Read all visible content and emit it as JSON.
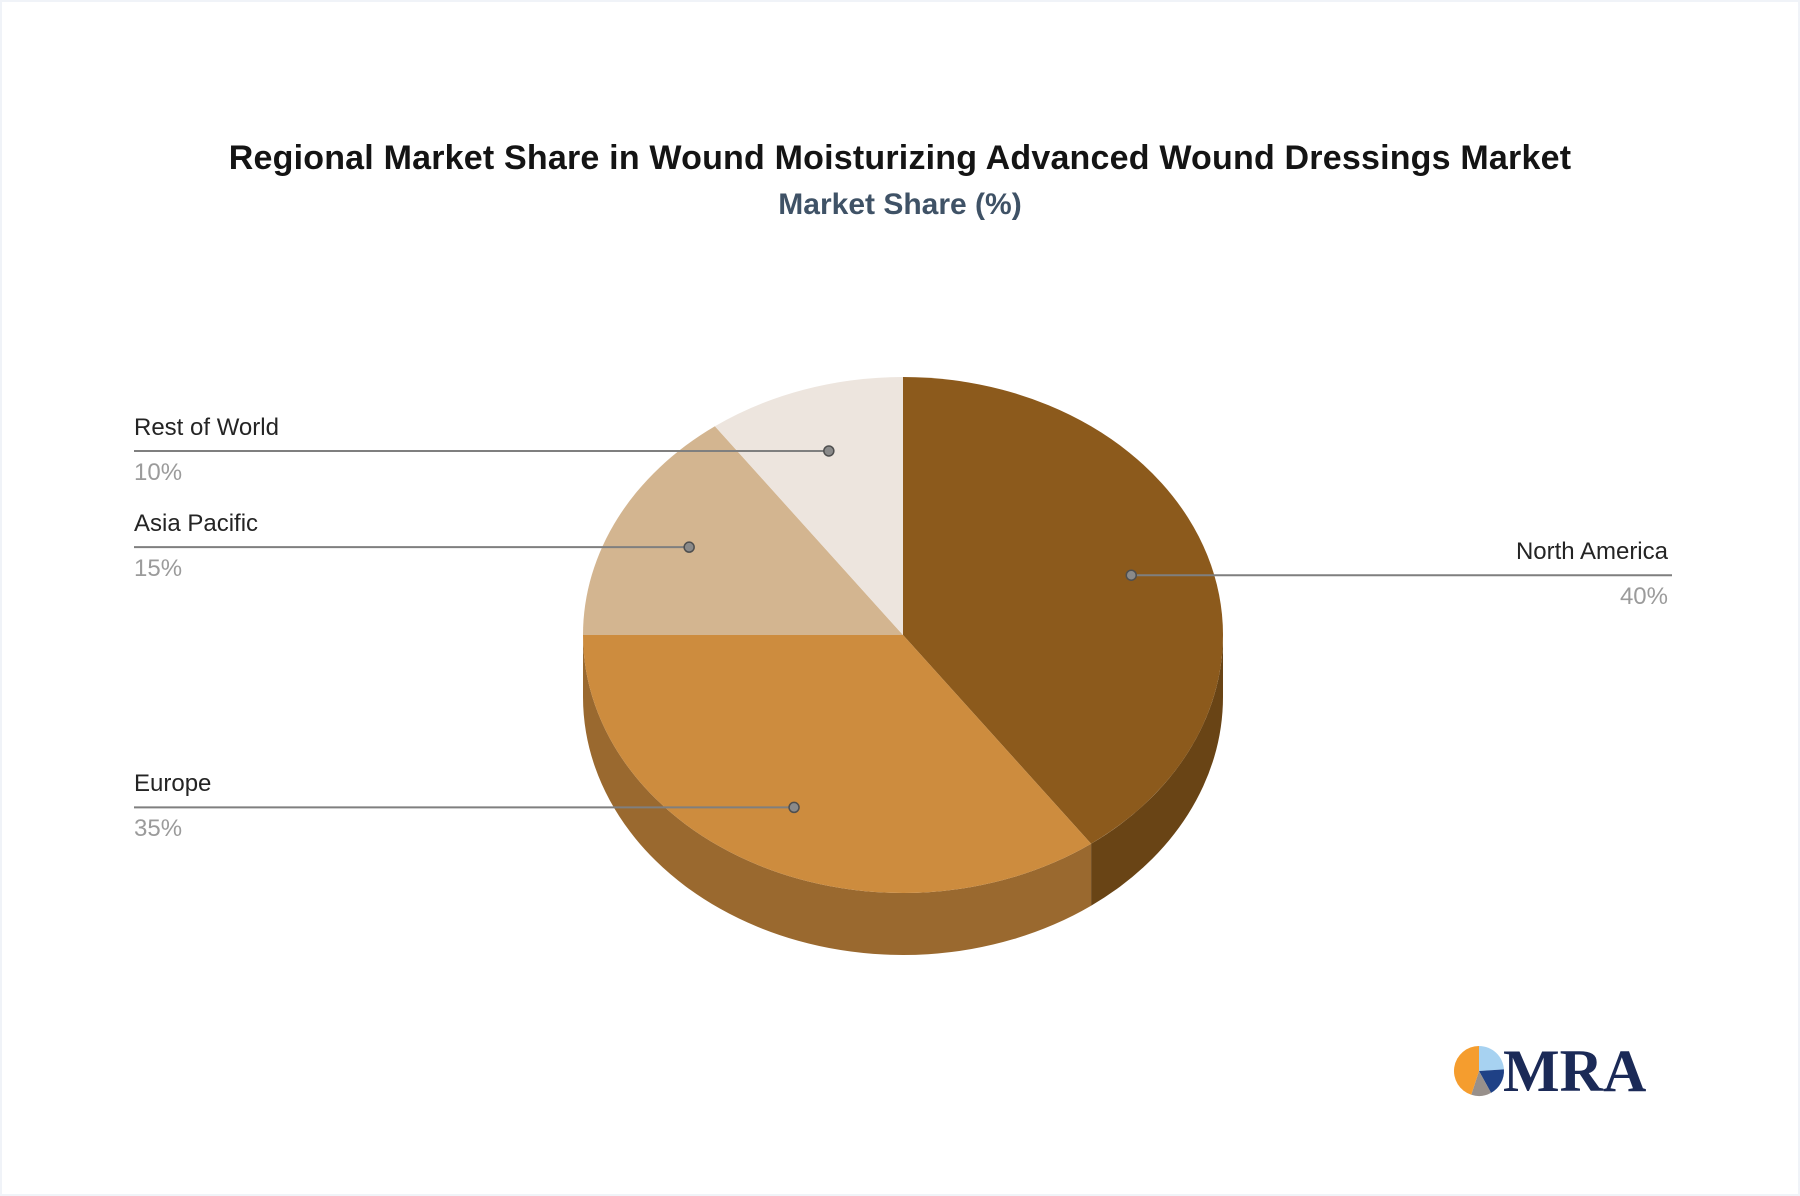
{
  "colors": {
    "background": "#FFFFFF",
    "border-color": "#F0F3F8",
    "title-color": "#141414",
    "subtitle-color": "#3F5266",
    "label-color": "#242424",
    "pct-color": "#9B9B9B",
    "leader-color": "#7F7F7F",
    "leader-dot-fill": "#8A8A8A",
    "leader-dot-stroke": "#4F4F4F",
    "logo-text-color": "#1B2A57"
  },
  "header": {
    "title": "Regional Market Share in Wound Moisturizing Advanced Wound Dressings Market",
    "subtitle": "Market Share (%)"
  },
  "chart_data": {
    "type": "pie",
    "style": "3d",
    "title": "Regional Market Share in Wound Moisturizing Advanced Wound Dressings Market",
    "subtitle": "Market Share (%)",
    "unit": "%",
    "start_angle_deg": 0,
    "direction": "clockwise",
    "legend_position": "none",
    "labels": "leader-lines",
    "categories": [
      "North America",
      "Europe",
      "Asia Pacific",
      "Rest of World"
    ],
    "values": [
      40,
      35,
      15,
      10
    ],
    "slices": [
      {
        "label": "North America",
        "value": 40,
        "pct": "40%",
        "color": "#8C5A1C",
        "callout_side": "right"
      },
      {
        "label": "Europe",
        "value": 35,
        "pct": "35%",
        "color": "#CD8C3E",
        "callout_side": "left"
      },
      {
        "label": "Asia Pacific",
        "value": 15,
        "pct": "15%",
        "color": "#D3B590",
        "callout_side": "left"
      },
      {
        "label": "Rest of World",
        "value": 10,
        "pct": "10%",
        "color": "#EDE5DE",
        "callout_side": "left"
      }
    ]
  },
  "logo": {
    "text": "MRA",
    "pie_slices": [
      {
        "name": "light-blue",
        "color": "#A7D2F1",
        "value": 24
      },
      {
        "name": "navy",
        "color": "#1F4186",
        "value": 18
      },
      {
        "name": "gray",
        "color": "#98908B",
        "value": 13
      },
      {
        "name": "orange",
        "color": "#F59D2E",
        "value": 45
      }
    ]
  }
}
